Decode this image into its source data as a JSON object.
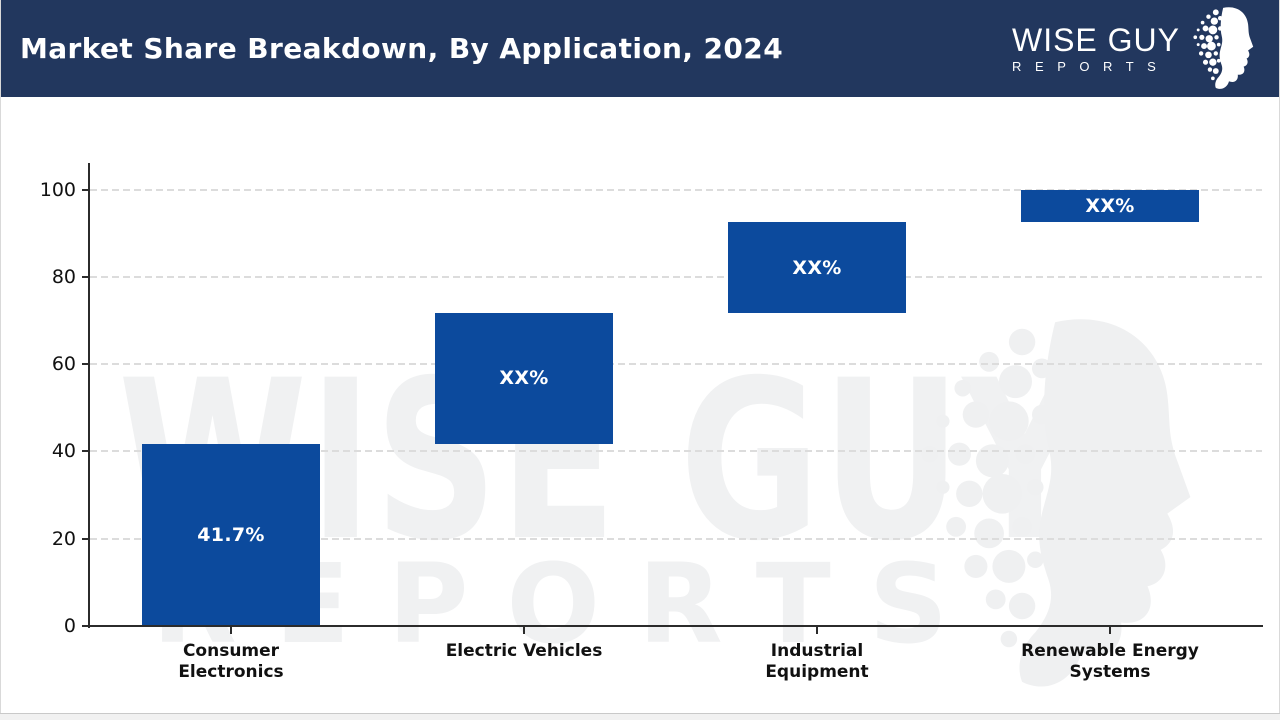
{
  "header": {
    "title": "Market Share Breakdown, By Application, 2024",
    "bg_color": "#22375E",
    "logo": {
      "line1": "WISE GUY",
      "line2": "R E P O R T S"
    }
  },
  "watermark": {
    "line1": "WISE GUY",
    "line2": "REPORTS"
  },
  "chart_data": {
    "type": "bar",
    "subtype": "waterfall",
    "title": "Market Share Breakdown, By Application, 2024",
    "categories": [
      "Consumer Electronics",
      "Electric Vehicles",
      "Industrial Equipment",
      "Renewable Energy Systems"
    ],
    "category_label_lines": [
      [
        "Consumer",
        "Electronics"
      ],
      [
        "Electric Vehicles"
      ],
      [
        "Industrial",
        "Equipment"
      ],
      [
        "Renewable Energy",
        "Systems"
      ]
    ],
    "series": [
      {
        "name": "Market Share (%)",
        "segments": [
          {
            "category": "Consumer Electronics",
            "start": 0,
            "end": 41.7,
            "label": "41.7%"
          },
          {
            "category": "Electric Vehicles",
            "start": 41.7,
            "end": 71.7,
            "label": "XX%"
          },
          {
            "category": "Industrial Equipment",
            "start": 71.7,
            "end": 92.5,
            "label": "XX%"
          },
          {
            "category": "Renewable Energy Systems",
            "start": 92.5,
            "end": 100,
            "label": "XX%"
          }
        ]
      }
    ],
    "xlabel": "",
    "ylabel": "",
    "ylim": [
      0,
      100
    ],
    "yticks": [
      0,
      20,
      40,
      60,
      80,
      100
    ],
    "grid": "horizontal-dashed",
    "legend": "none",
    "bar_color": "#0C4A9D",
    "bar_label_color": "#FFFFFF",
    "axis_color": "#2B2B2B",
    "gridline_color": "#DCDCDC"
  }
}
